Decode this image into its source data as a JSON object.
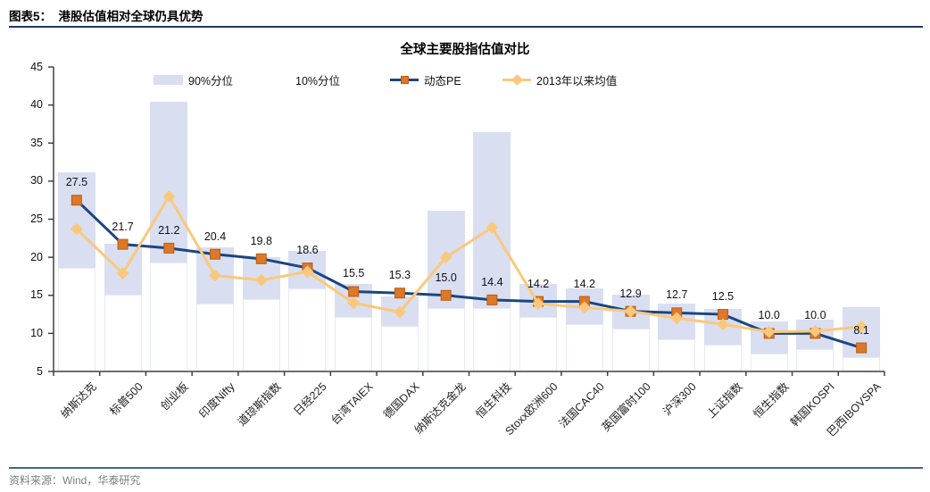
{
  "header": {
    "title": "图表5：  港股估值相对全球仍具优势"
  },
  "footer": {
    "source": "资料来源：Wind，华泰研究"
  },
  "colors": {
    "range_bar_90_fill": "#D9DFF1",
    "range_bar_10_fill": "#FFFFFF",
    "range_bar_10_border": "#E7EBF6",
    "pe_line": "#1B4680",
    "pe_marker_fill": "#DC7828",
    "pe_marker_border": "#BE5B10",
    "mean_line": "#FAC87C",
    "axis": "#404040",
    "header_rule": "#1F3864",
    "footer_rule": "#41648C",
    "source_text": "#7F7F7F"
  },
  "chart_data": {
    "type": "bar",
    "subtype": "floating-percentile-range-bars-with-lines",
    "title": "全球主要股指估值对比",
    "categories": [
      "纳斯达克",
      "标普500",
      "创业板",
      "印度Nifty",
      "道琼斯指数",
      "日经225",
      "台湾TAIEX",
      "德国DAX",
      "纳斯达克金龙",
      "恒生科技",
      "Stoxx欧洲600",
      "法国CAC40",
      "英国富时100",
      "沪深300",
      "上证指数",
      "恒生指数",
      "韩国KOSPI",
      "巴西IBOVSPA"
    ],
    "series": [
      {
        "name": "90%分位",
        "type": "range_high",
        "values": [
          31.2,
          21.8,
          40.4,
          21.3,
          20.0,
          20.8,
          16.5,
          14.9,
          26.1,
          36.4,
          16.5,
          15.9,
          15.1,
          13.9,
          13.2,
          11.6,
          11.8,
          13.5
        ]
      },
      {
        "name": "10%分位",
        "type": "range_low",
        "values": [
          18.6,
          15.1,
          19.3,
          13.9,
          14.5,
          15.9,
          12.2,
          11.0,
          13.3,
          13.3,
          12.2,
          11.2,
          10.6,
          9.2,
          8.5,
          7.3,
          7.9,
          6.9
        ]
      },
      {
        "name": "动态PE",
        "type": "line",
        "values": [
          27.5,
          21.7,
          21.2,
          20.4,
          19.8,
          18.6,
          15.5,
          15.3,
          15.0,
          14.4,
          14.2,
          14.2,
          12.9,
          12.7,
          12.5,
          10.0,
          10.0,
          8.1
        ],
        "data_labels": true
      },
      {
        "name": "2013年以来均值",
        "type": "line",
        "values": [
          23.7,
          17.9,
          28.0,
          17.6,
          17.0,
          18.1,
          14.0,
          12.8,
          20.0,
          23.9,
          13.9,
          13.4,
          12.9,
          12.0,
          11.2,
          10.2,
          10.3,
          10.9
        ]
      }
    ],
    "ylim": [
      5,
      45
    ],
    "yticks": [
      45,
      40,
      35,
      30,
      25,
      20,
      15,
      10,
      5
    ],
    "grid": false,
    "legend_position": "top"
  }
}
